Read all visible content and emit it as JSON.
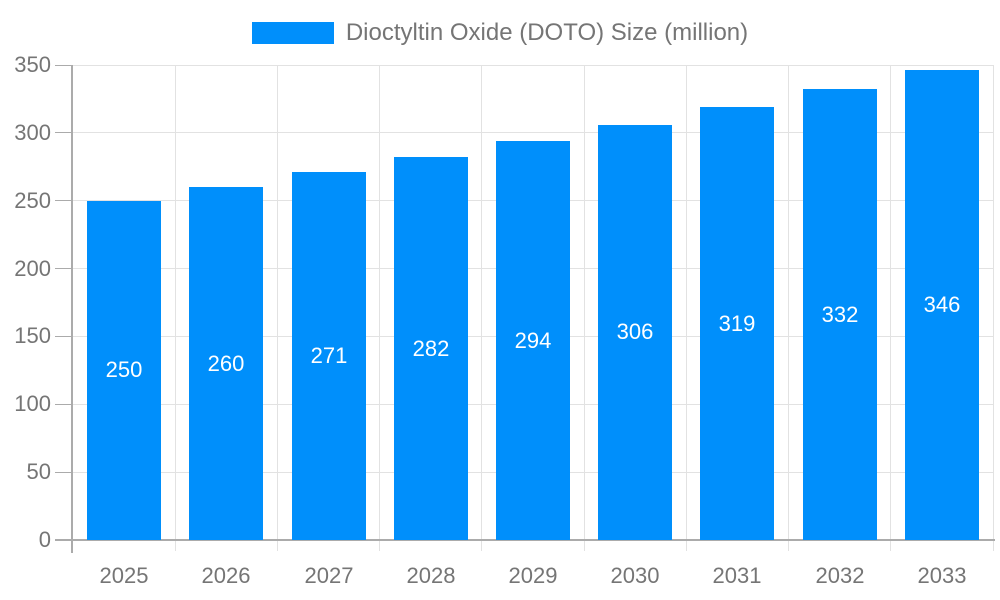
{
  "chart_data": {
    "type": "bar",
    "title": "Dioctyltin Oxide (DOTO) Size (million)",
    "categories": [
      "2025",
      "2026",
      "2027",
      "2028",
      "2029",
      "2030",
      "2031",
      "2032",
      "2033"
    ],
    "values": [
      250,
      260,
      271,
      282,
      294,
      306,
      319,
      332,
      346
    ],
    "series": [
      {
        "name": "Dioctyltin Oxide (DOTO) Size (million)",
        "values": [
          250,
          260,
          271,
          282,
          294,
          306,
          319,
          332,
          346
        ]
      }
    ],
    "xlabel": "",
    "ylabel": "",
    "ylim": [
      0,
      350
    ],
    "yticks": [
      0,
      50,
      100,
      150,
      200,
      250,
      300,
      350
    ],
    "grid": true,
    "legend_position": "top",
    "data_labels": "inside-middle",
    "colors": {
      "bar": "#008ffb",
      "bar_label": "#ffffff",
      "axis_text": "#757575",
      "axis_line": "#ababab",
      "grid_line": "#e2e2e2",
      "background": "#ffffff"
    }
  }
}
